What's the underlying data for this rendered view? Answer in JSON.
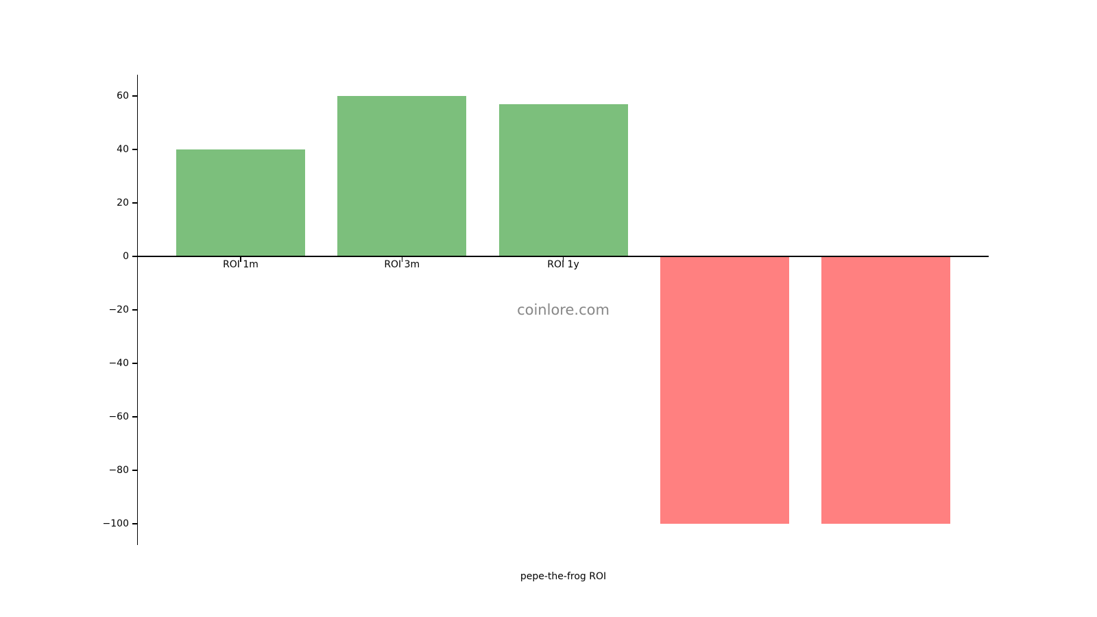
{
  "watermark": "coinlore.com",
  "colors": {
    "positive_bar": "#7cbf7c",
    "negative_bar": "#ff8080",
    "axis": "#000000",
    "watermark_text": "#878787",
    "background": "#ffffff"
  },
  "chart_data": {
    "type": "bar",
    "title": "",
    "xlabel": "pepe-the-frog ROI",
    "ylabel": "",
    "categories": [
      "ROI 1m",
      "ROI 3m",
      "ROI 1y",
      "",
      ""
    ],
    "values": [
      40,
      60,
      57,
      -100,
      -100
    ],
    "bar_colors": [
      "#7cbf7c",
      "#7cbf7c",
      "#7cbf7c",
      "#ff8080",
      "#ff8080"
    ],
    "yticks": [
      60,
      40,
      20,
      0,
      -20,
      -40,
      -60,
      -80,
      -100
    ],
    "ytick_labels": [
      "60",
      "40",
      "20",
      "0",
      "−20",
      "−40",
      "−60",
      "−80",
      "−100"
    ],
    "ylim": [
      -108,
      68
    ],
    "grid": false,
    "legend": null,
    "watermark": "coinlore.com"
  }
}
